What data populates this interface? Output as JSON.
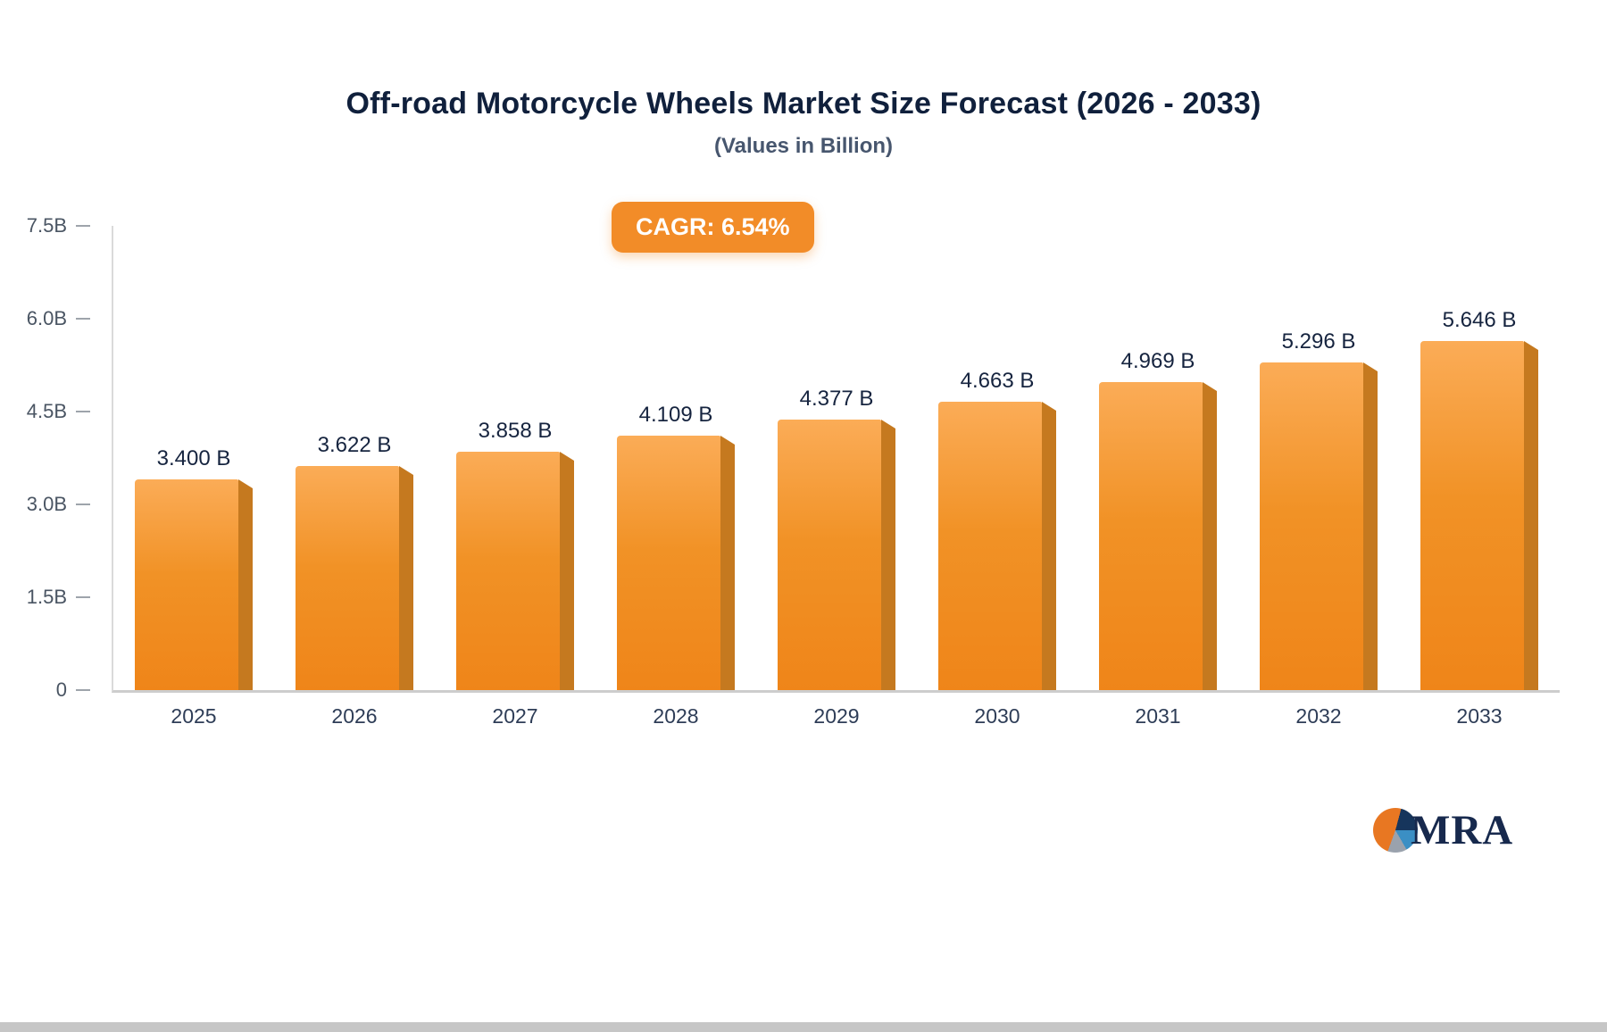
{
  "page": {
    "logo_text": "MRA"
  },
  "chart_data": {
    "type": "bar",
    "title": "Off-road Motorcycle Wheels Market Size Forecast (2026 - 2033)",
    "subtitle": "(Values in Billion)",
    "cagr": "6.54%",
    "cagr_label": "CAGR: 6.54%",
    "categories": [
      "2025",
      "2026",
      "2027",
      "2028",
      "2029",
      "2030",
      "2031",
      "2032",
      "2033"
    ],
    "values": [
      3.4,
      3.622,
      3.858,
      4.109,
      4.377,
      4.663,
      4.969,
      5.296,
      5.646
    ],
    "value_labels": [
      "3.400 B",
      "3.622 B",
      "3.858 B",
      "4.109 B",
      "4.377 B",
      "4.663 B",
      "4.969 B",
      "5.296 B",
      "5.646 B"
    ],
    "xlabel": "",
    "ylabel": "",
    "ylim": [
      0,
      7.5
    ],
    "yticks": [
      0,
      1.5,
      3.0,
      4.5,
      6.0,
      7.5
    ],
    "ytick_labels": [
      "0",
      "1.5B",
      "3.0B",
      "4.5B",
      "6.0B",
      "7.5B"
    ],
    "grid": false,
    "legend": false,
    "bar_color_top": "#FBAC57",
    "bar_color_bottom": "#EF8519",
    "bar_side_color": "#C5791F",
    "accent_color": "#F28C28",
    "axis_color": "#cdcdcd"
  }
}
